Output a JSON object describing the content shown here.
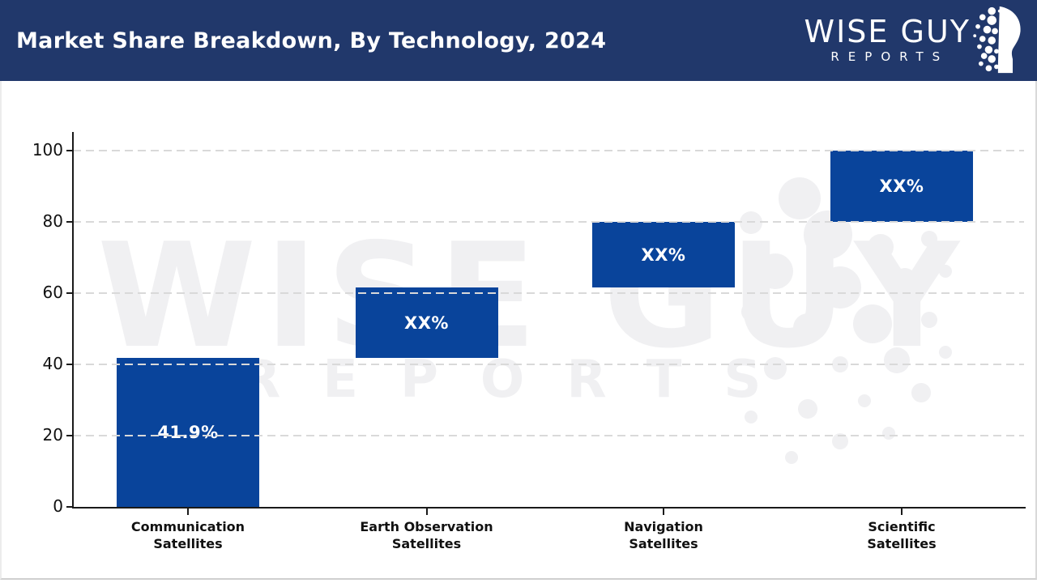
{
  "header": {
    "title": "Market Share Breakdown, By Technology, 2024",
    "bg_color": "#21386b",
    "logo": {
      "line1": "WISE GUY",
      "line2": "REPORTS"
    }
  },
  "watermark": {
    "line1": "WISE GUY",
    "line2": "REPORTS",
    "color": "#f0f0f2"
  },
  "chart_data": {
    "type": "bar",
    "subtype": "waterfall",
    "title": "Market Share Breakdown, By Technology, 2024",
    "categories": [
      "Communication Satellites",
      "Earth Observation Satellites",
      "Navigation Satellites",
      "Scientific Satellites"
    ],
    "bars": [
      {
        "category": "Communication Satellites",
        "category_lines": [
          "Communication",
          "Satellites"
        ],
        "start": 0,
        "end": 41.9,
        "label": "41.9%"
      },
      {
        "category": "Earth Observation Satellites",
        "category_lines": [
          "Earth Observation",
          "Satellites"
        ],
        "start": 41.9,
        "end": 61.5,
        "label": "XX%"
      },
      {
        "category": "Navigation Satellites",
        "category_lines": [
          "Navigation",
          "Satellites"
        ],
        "start": 61.5,
        "end": 80.0,
        "label": "XX%"
      },
      {
        "category": "Scientific Satellites",
        "category_lines": [
          "Scientific",
          "Satellites"
        ],
        "start": 80.0,
        "end": 100.0,
        "label": "XX%"
      }
    ],
    "ylim": [
      0,
      100
    ],
    "yticks": [
      0,
      20,
      40,
      60,
      80,
      100
    ],
    "xlabel": "",
    "ylabel": "",
    "legend": "none",
    "grid": "horizontal-dashed",
    "grid_color": "#d9d9d9",
    "bar_color": "#09449b",
    "bar_label_color": "#ffffff"
  }
}
